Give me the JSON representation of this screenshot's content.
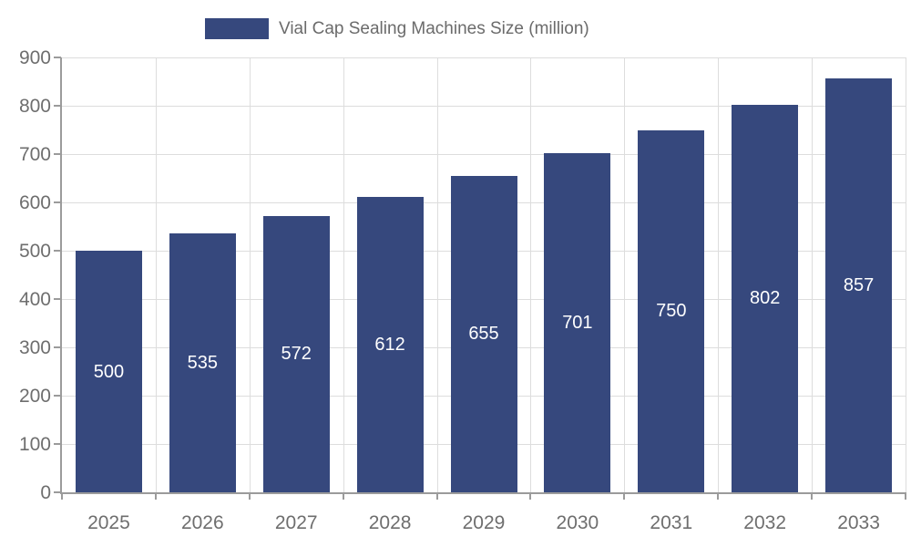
{
  "chart_data": {
    "type": "bar",
    "title": "Vial Cap Sealing Machines Size (million)",
    "legend": [
      "Vial Cap Sealing Machines Size (million)"
    ],
    "legend_position": "top",
    "categories": [
      "2025",
      "2026",
      "2027",
      "2028",
      "2029",
      "2030",
      "2031",
      "2032",
      "2033"
    ],
    "series": [
      {
        "name": "Vial Cap Sealing Machines Size (million)",
        "values": [
          500,
          535,
          572,
          612,
          655,
          701,
          750,
          802,
          857
        ]
      }
    ],
    "xlabel": "",
    "ylabel": "",
    "ylim": [
      0,
      900
    ],
    "ytick_step": 100,
    "ytick_labels": [
      "0",
      "100",
      "200",
      "300",
      "400",
      "500",
      "600",
      "700",
      "800",
      "900"
    ],
    "grid": true,
    "value_labels_shown": true,
    "colors": {
      "bar": "#36487D",
      "value_label": "#FFFFFF",
      "grid": "#DDDDDD",
      "axis": "#9B9B9B",
      "tick_label": "#6E6E6E",
      "legend_text": "#6B6B6B"
    }
  }
}
